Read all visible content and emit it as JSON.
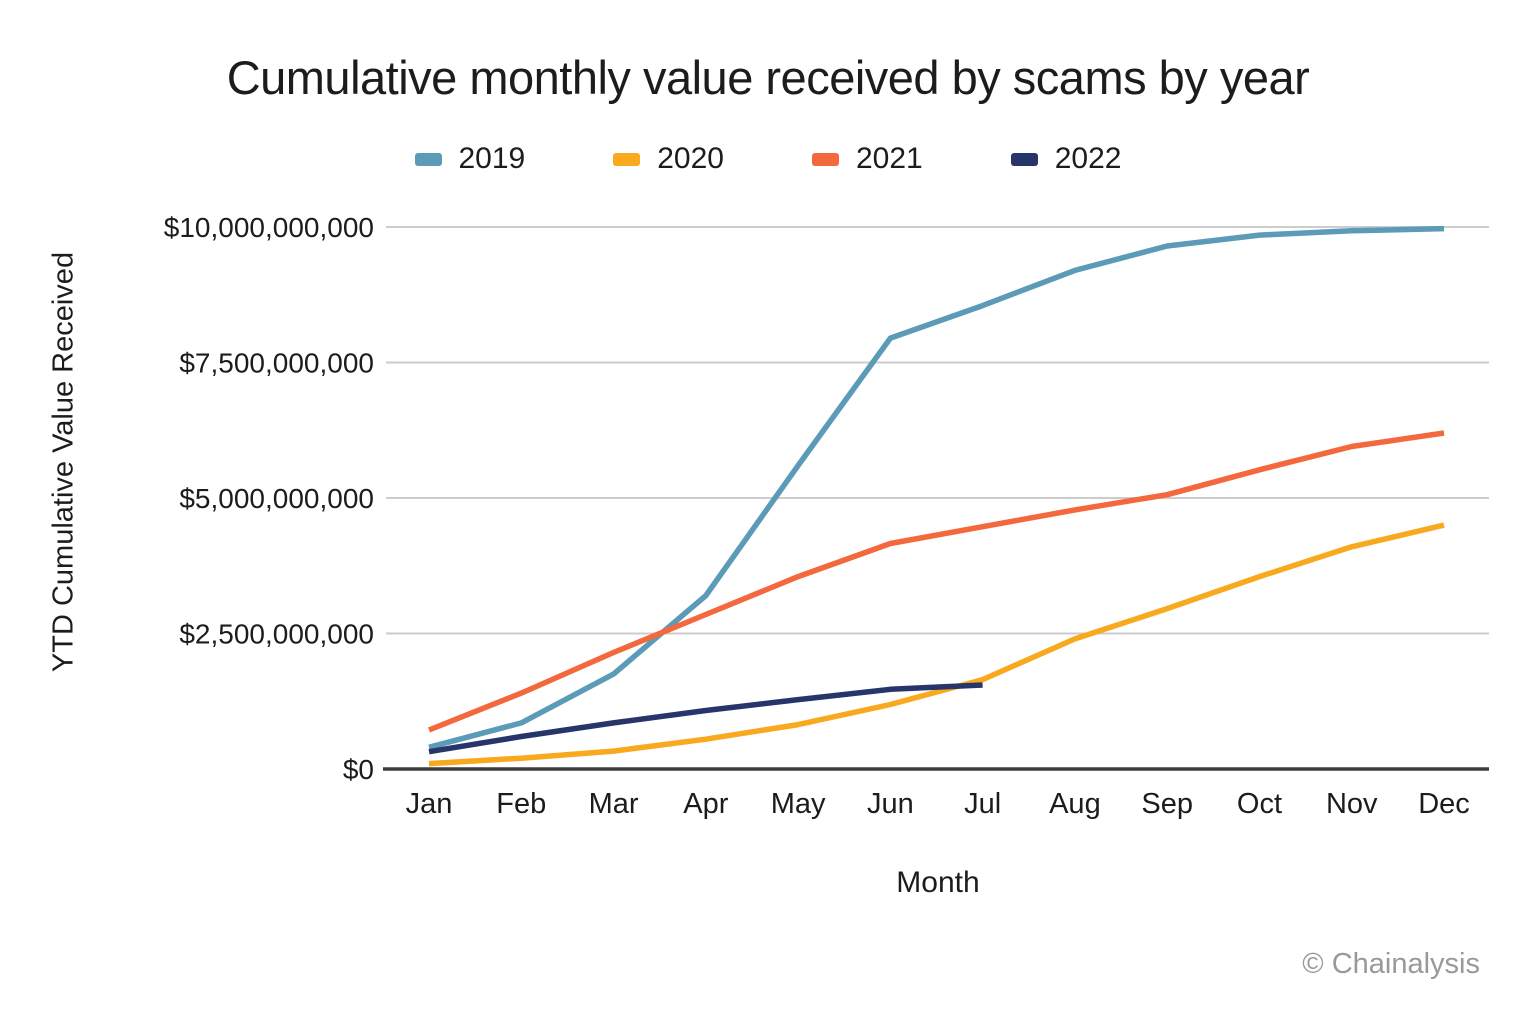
{
  "page": {
    "title": "Cumulative monthly value received by scams by year",
    "watermark": "© Chainalysis"
  },
  "axes": {
    "y_title": "YTD Cumulative Value Received",
    "x_title": "Month"
  },
  "colors": {
    "background": "#FFFFFF",
    "grid": "#CCCCCC",
    "axis_line": "#3D3D3D",
    "text": "#1C1C1C",
    "watermark": "#999999",
    "series_2019": "#5C9BB7",
    "series_2020": "#F8A91D",
    "series_2021": "#F3683D",
    "series_2022": "#28356B"
  },
  "chart_data": {
    "type": "line",
    "title": "Cumulative monthly value received by scams by year",
    "xlabel": "Month",
    "ylabel": "YTD Cumulative Value Received",
    "legend_position": "top",
    "grid": true,
    "value_unit": "USD billions",
    "ylim": [
      0,
      10
    ],
    "categories": [
      "Jan",
      "Feb",
      "Mar",
      "Apr",
      "May",
      "Jun",
      "Jul",
      "Aug",
      "Sep",
      "Oct",
      "Nov",
      "Dec"
    ],
    "yticks": [
      {
        "value": 0,
        "label": "$0"
      },
      {
        "value": 2.5,
        "label": "$2,500,000,000"
      },
      {
        "value": 5,
        "label": "$5,000,000,000"
      },
      {
        "value": 7.5,
        "label": "$7,500,000,000"
      },
      {
        "value": 10,
        "label": "$10,000,000,000"
      }
    ],
    "series": [
      {
        "name": "2019",
        "color": "#5C9BB7",
        "values": [
          0.4,
          0.85,
          1.75,
          3.2,
          5.6,
          7.95,
          8.55,
          9.2,
          9.65,
          9.85,
          9.93,
          9.97
        ]
      },
      {
        "name": "2020",
        "color": "#F8A91D",
        "values": [
          0.1,
          0.2,
          0.33,
          0.55,
          0.82,
          1.19,
          1.65,
          2.4,
          2.96,
          3.55,
          4.1,
          4.5
        ]
      },
      {
        "name": "2021",
        "color": "#F3683D",
        "values": [
          0.72,
          1.4,
          2.15,
          2.85,
          3.55,
          4.16,
          4.47,
          4.78,
          5.06,
          5.52,
          5.95,
          6.2
        ]
      },
      {
        "name": "2022",
        "color": "#28356B",
        "values": [
          0.32,
          0.6,
          0.85,
          1.08,
          1.28,
          1.47,
          1.55
        ]
      }
    ]
  }
}
